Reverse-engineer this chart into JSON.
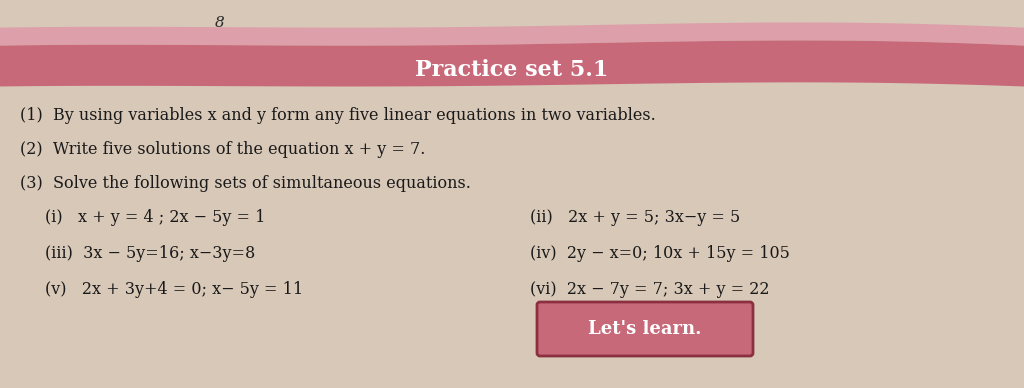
{
  "title": "Practice set 5.1",
  "title_bg_color": "#c8697a",
  "title_text_color": "#ffffff",
  "bg_color": "#d8c8b8",
  "text_color": "#1a1a1a",
  "line1": "(1)  By using variables x and y form any five linear equations in two variables.",
  "line2": "(2)  Write five solutions of the equation x + y = 7.",
  "line3": "(3)  Solve the following sets of simultaneous equations.",
  "sub_left_1": "(i)   x + y = 4 ; 2x − 5y = 1",
  "sub_left_2": "(iii)  3x − 5y=16; x−3y=8",
  "sub_left_3": "(v)   2x + 3y+4 = 0; x− 5y = 11",
  "sub_right_1": "(ii)   2x + y = 5; 3x−y = 5",
  "sub_right_2": "(iv)  2y − x=0; 10x + 15y = 105",
  "sub_right_3": "(vi)  2x − 7y = 7; 3x + y = 22",
  "lets_learn_bg": "#c8697a",
  "lets_learn_text": "Let's learn.",
  "fig_width": 10.24,
  "fig_height": 3.88,
  "dpi": 100
}
